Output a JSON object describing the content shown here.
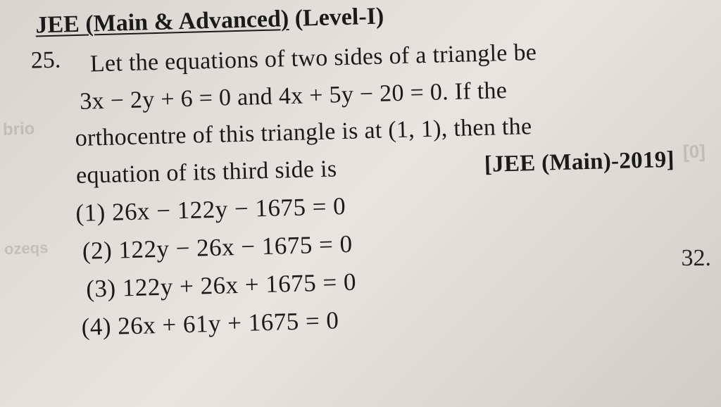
{
  "header": {
    "underlined": "JEE (Main & Advanced)",
    "suffix": " (Level-I)"
  },
  "question": {
    "number": "25.",
    "line1": "Let the equations of two sides of a triangle be",
    "line2": "3x − 2y + 6 = 0 and 4x + 5y − 20 = 0. If the",
    "line3": "orthocentre of this triangle is at (1, 1), then the",
    "line4": "equation of its third side is",
    "tag": "[JEE (Main)-2019]"
  },
  "options": {
    "opt1": "(1)  26x − 122y − 1675 = 0",
    "opt2": "(2)  122y − 26x − 1675 = 0",
    "opt3": "(3)  122y + 26x + 1675 = 0",
    "opt4": "(4)  26x + 61y + 1675 = 0"
  },
  "side_number": "32.",
  "bleed": {
    "f1": "brio",
    "f2": "[0]",
    "f3": "ozeqs"
  },
  "style": {
    "background_gradient": [
      "#d8d4d0",
      "#e8e4e0",
      "#d0ccc8"
    ],
    "text_color": "#1a1a1a",
    "header_fontsize": 34,
    "body_fontsize": 34,
    "option_fontsize": 35,
    "rotation_deg": -1.5,
    "font_family": "Georgia, Times New Roman, serif"
  }
}
